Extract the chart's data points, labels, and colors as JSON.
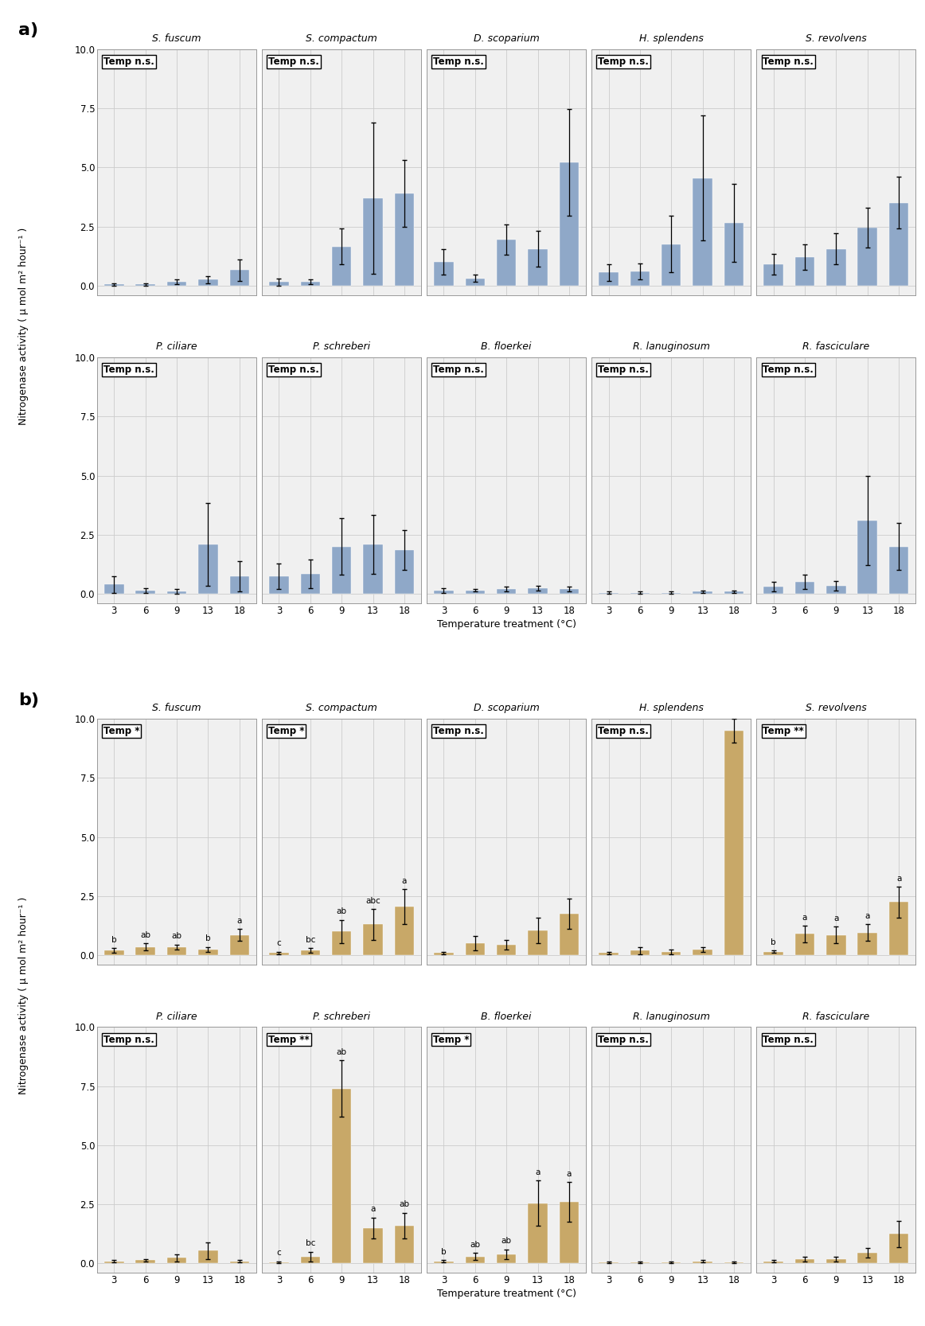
{
  "panel_a": {
    "title": "a)",
    "row1_species": [
      "S. fuscum",
      "S. compactum",
      "D. scoparium",
      "H. splendens",
      "S. revolvens"
    ],
    "row2_species": [
      "P. ciliare",
      "P. schreberi",
      "B. floerkei",
      "R. lanuginosum",
      "R. fasciculare"
    ],
    "bar_color": "#8fa8c8",
    "temp_labels": [
      "Temp n.s.",
      "Temp n.s.",
      "Temp n.s.",
      "Temp n.s.",
      "Temp n.s.",
      "Temp n.s.",
      "Temp n.s.",
      "Temp n.s.",
      "Temp n.s.",
      "Temp n.s."
    ],
    "values": [
      [
        0.05,
        0.05,
        0.15,
        0.25,
        0.65
      ],
      [
        0.15,
        0.15,
        1.65,
        3.7,
        3.9
      ],
      [
        1.0,
        0.3,
        1.95,
        1.55,
        5.2
      ],
      [
        0.55,
        0.6,
        1.75,
        4.55,
        2.65
      ],
      [
        0.9,
        1.2,
        1.55,
        2.45,
        3.5
      ],
      [
        0.4,
        0.15,
        0.1,
        2.1,
        0.75
      ],
      [
        0.75,
        0.85,
        2.0,
        2.1,
        1.85
      ],
      [
        0.15,
        0.15,
        0.2,
        0.25,
        0.2
      ],
      [
        0.05,
        0.05,
        0.05,
        0.1,
        0.1
      ],
      [
        0.3,
        0.5,
        0.35,
        3.1,
        2.0
      ]
    ],
    "errors": [
      [
        0.05,
        0.05,
        0.1,
        0.15,
        0.45
      ],
      [
        0.15,
        0.1,
        0.75,
        3.2,
        1.4
      ],
      [
        0.55,
        0.15,
        0.65,
        0.75,
        2.25
      ],
      [
        0.35,
        0.35,
        1.2,
        2.65,
        1.65
      ],
      [
        0.45,
        0.55,
        0.65,
        0.85,
        1.1
      ],
      [
        0.35,
        0.1,
        0.1,
        1.75,
        0.65
      ],
      [
        0.55,
        0.6,
        1.2,
        1.25,
        0.85
      ],
      [
        0.1,
        0.05,
        0.1,
        0.1,
        0.1
      ],
      [
        0.05,
        0.05,
        0.05,
        0.05,
        0.05
      ],
      [
        0.2,
        0.3,
        0.2,
        1.9,
        1.0
      ]
    ]
  },
  "panel_b": {
    "title": "b)",
    "row1_species": [
      "S. fuscum",
      "S. compactum",
      "D. scoparium",
      "H. splendens",
      "S. revolvens"
    ],
    "row2_species": [
      "P. ciliare",
      "P. schreberi",
      "B. floerkei",
      "R. lanuginosum",
      "R. fasciculare"
    ],
    "bar_color": "#c8a868",
    "temp_labels_row1": [
      "Temp *",
      "Temp *",
      "Temp n.s.",
      "Temp n.s.",
      "Temp **"
    ],
    "temp_labels_row2": [
      "Temp n.s.",
      "Temp **",
      "Temp *",
      "Temp n.s.",
      "Temp n.s."
    ],
    "values": [
      [
        0.2,
        0.35,
        0.35,
        0.25,
        0.85
      ],
      [
        0.1,
        0.2,
        1.0,
        1.3,
        2.05
      ],
      [
        0.1,
        0.5,
        0.45,
        1.05,
        1.75
      ],
      [
        0.1,
        0.2,
        0.15,
        0.25,
        9.5
      ],
      [
        0.15,
        0.9,
        0.85,
        0.95,
        2.25
      ],
      [
        0.1,
        0.15,
        0.25,
        0.55,
        0.1
      ],
      [
        0.05,
        0.3,
        7.4,
        1.5,
        1.6
      ],
      [
        0.1,
        0.3,
        0.4,
        2.55,
        2.6
      ],
      [
        0.05,
        0.05,
        0.05,
        0.1,
        0.05
      ],
      [
        0.1,
        0.2,
        0.2,
        0.45,
        1.25
      ]
    ],
    "errors": [
      [
        0.1,
        0.15,
        0.1,
        0.1,
        0.25
      ],
      [
        0.05,
        0.1,
        0.5,
        0.65,
        0.75
      ],
      [
        0.05,
        0.3,
        0.2,
        0.55,
        0.65
      ],
      [
        0.05,
        0.15,
        0.1,
        0.1,
        0.5
      ],
      [
        0.05,
        0.35,
        0.35,
        0.35,
        0.65
      ],
      [
        0.05,
        0.05,
        0.15,
        0.35,
        0.05
      ],
      [
        0.05,
        0.2,
        1.2,
        0.45,
        0.55
      ],
      [
        0.05,
        0.15,
        0.2,
        0.95,
        0.85
      ],
      [
        0.05,
        0.05,
        0.05,
        0.05,
        0.05
      ],
      [
        0.05,
        0.1,
        0.1,
        0.2,
        0.55
      ]
    ],
    "sig_labels_row1": [
      [
        "b",
        "ab",
        "ab",
        "b",
        "a"
      ],
      [
        "c",
        "bc",
        "ab",
        "abc",
        "a"
      ],
      [
        null,
        null,
        null,
        null,
        null
      ],
      [
        null,
        null,
        null,
        null,
        null
      ],
      [
        "b",
        "a",
        "a",
        "a",
        "a"
      ]
    ],
    "sig_labels_row2": [
      [
        null,
        null,
        null,
        null,
        null
      ],
      [
        "c",
        "bc",
        "ab",
        "a",
        "ab"
      ],
      [
        "b",
        "ab",
        "ab",
        "a",
        "a"
      ],
      [
        null,
        null,
        null,
        null,
        null
      ],
      [
        null,
        null,
        null,
        null,
        null
      ]
    ]
  },
  "x_ticks": [
    "3",
    "6",
    "9",
    "13",
    "18"
  ],
  "ylim": [
    -0.4,
    10.0
  ],
  "yticks": [
    0.0,
    2.5,
    5.0,
    7.5,
    10.0
  ],
  "ytick_labels": [
    "0.0",
    "2.5",
    "5.0",
    "7.5",
    "10.0"
  ],
  "xlabel": "Temperature treatment (°C)",
  "ylabel": "Nitrogenase activity ( μ mol m² hour⁻¹ )",
  "background_color": "#ffffff",
  "grid_color": "#cccccc",
  "subplot_bg": "#f0f0f0"
}
